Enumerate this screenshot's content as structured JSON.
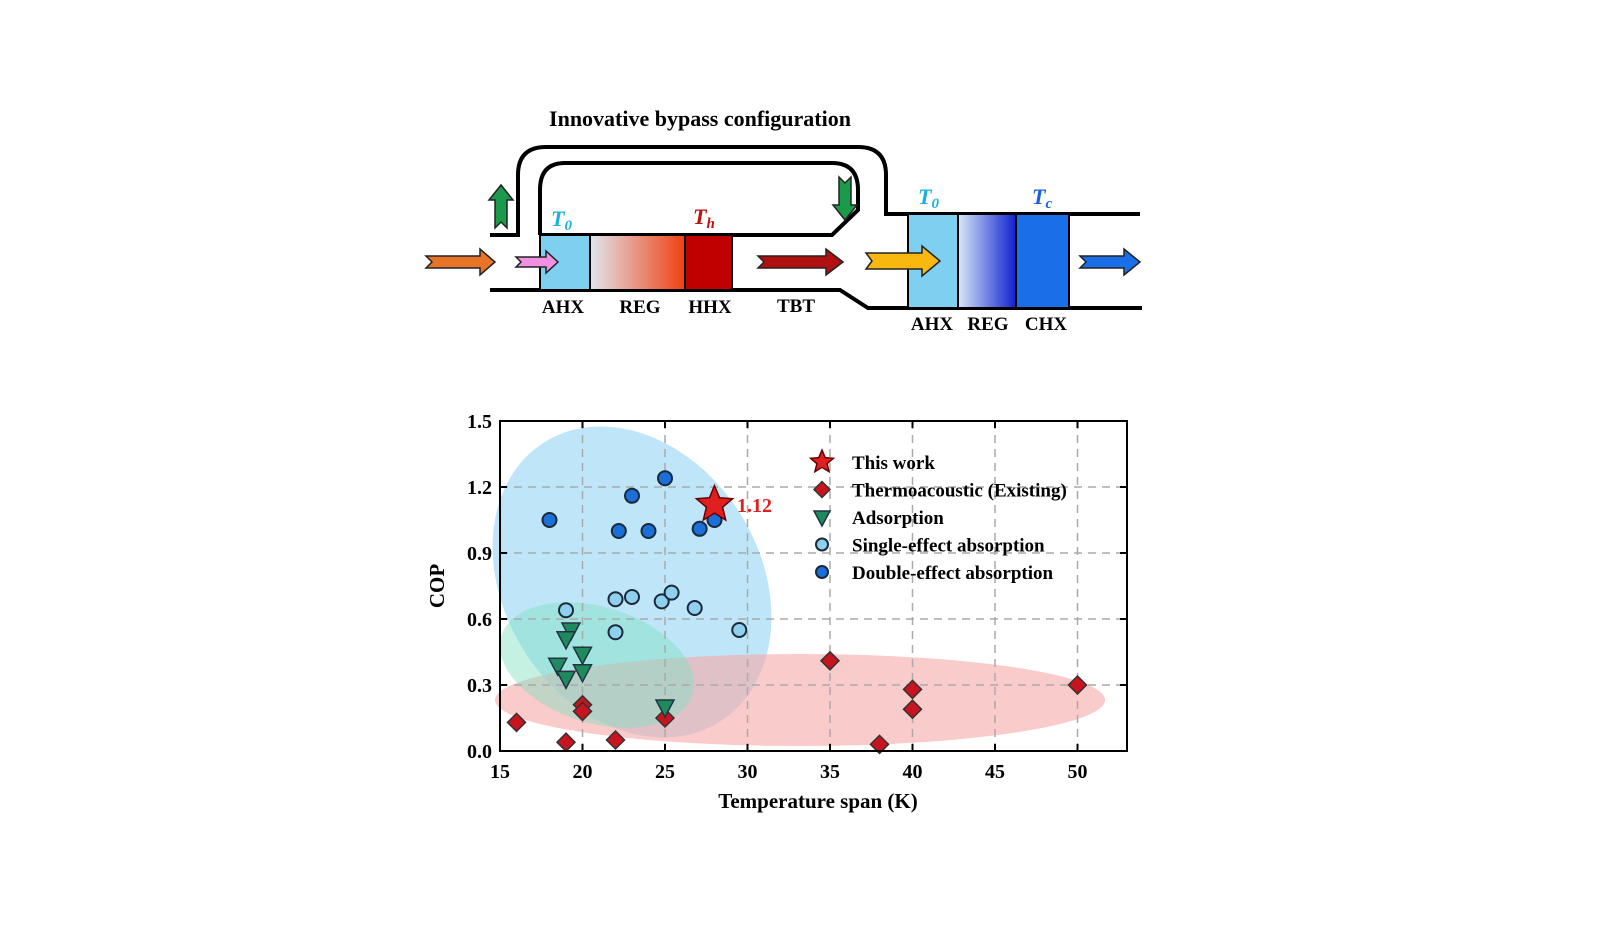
{
  "diagram": {
    "title": "Innovative bypass configuration",
    "labels_left": [
      "AHX",
      "REG",
      "HHX",
      "TBT"
    ],
    "labels_right": [
      "AHX",
      "REG",
      "CHX"
    ],
    "temp_T0": "T",
    "temp_T0_sub": "0",
    "temp_Th": "T",
    "temp_Th_sub": "h",
    "temp_Tc": "T",
    "temp_Tc_sub": "c",
    "colors": {
      "ahx": "#7fd0f0",
      "hhx": "#c00000",
      "chx": "#1a6fe8",
      "bypass_arrow": "#1a9a4a"
    }
  },
  "chart_data": {
    "type": "scatter",
    "xlabel": "Temperature span (K)",
    "ylabel": "COP",
    "xlim": [
      15,
      53
    ],
    "ylim": [
      0,
      1.5
    ],
    "xticks": [
      15,
      20,
      25,
      30,
      35,
      40,
      45,
      50
    ],
    "yticks": [
      "0.0",
      "0.3",
      "0.6",
      "0.9",
      "1.2",
      "1.5"
    ],
    "grid": true,
    "legend_position": "top-right",
    "annotation": "1.12",
    "series": [
      {
        "name": "This work",
        "marker": "star",
        "color": "#e02020",
        "points": [
          [
            28,
            1.12
          ]
        ]
      },
      {
        "name": "Thermoacoustic (Existing)",
        "marker": "diamond",
        "color": "#c8141e",
        "points": [
          [
            16,
            0.13
          ],
          [
            19,
            0.04
          ],
          [
            20,
            0.21
          ],
          [
            20,
            0.18
          ],
          [
            22,
            0.05
          ],
          [
            25,
            0.15
          ],
          [
            35,
            0.41
          ],
          [
            38,
            0.03
          ],
          [
            40,
            0.28
          ],
          [
            40,
            0.19
          ],
          [
            50,
            0.3
          ]
        ]
      },
      {
        "name": "Adsorption",
        "marker": "triangle-down",
        "color": "#1e8a5e",
        "points": [
          [
            19.3,
            0.55
          ],
          [
            19,
            0.51
          ],
          [
            20,
            0.44
          ],
          [
            18.5,
            0.39
          ],
          [
            20,
            0.36
          ],
          [
            19,
            0.33
          ],
          [
            25,
            0.2
          ]
        ]
      },
      {
        "name": "Single-effect absorption",
        "marker": "circle",
        "color": "#8fd0ee",
        "points": [
          [
            19,
            0.64
          ],
          [
            22,
            0.69
          ],
          [
            23,
            0.7
          ],
          [
            22,
            0.54
          ],
          [
            24.8,
            0.68
          ],
          [
            25.4,
            0.72
          ],
          [
            26.8,
            0.65
          ],
          [
            29.5,
            0.55
          ]
        ]
      },
      {
        "name": "Double-effect absorption",
        "marker": "circle",
        "color": "#1a6fd8",
        "points": [
          [
            18,
            1.05
          ],
          [
            22.2,
            1.0
          ],
          [
            23,
            1.16
          ],
          [
            24,
            1.0
          ],
          [
            25,
            1.24
          ],
          [
            27.1,
            1.01
          ],
          [
            28,
            1.05
          ]
        ]
      }
    ]
  }
}
